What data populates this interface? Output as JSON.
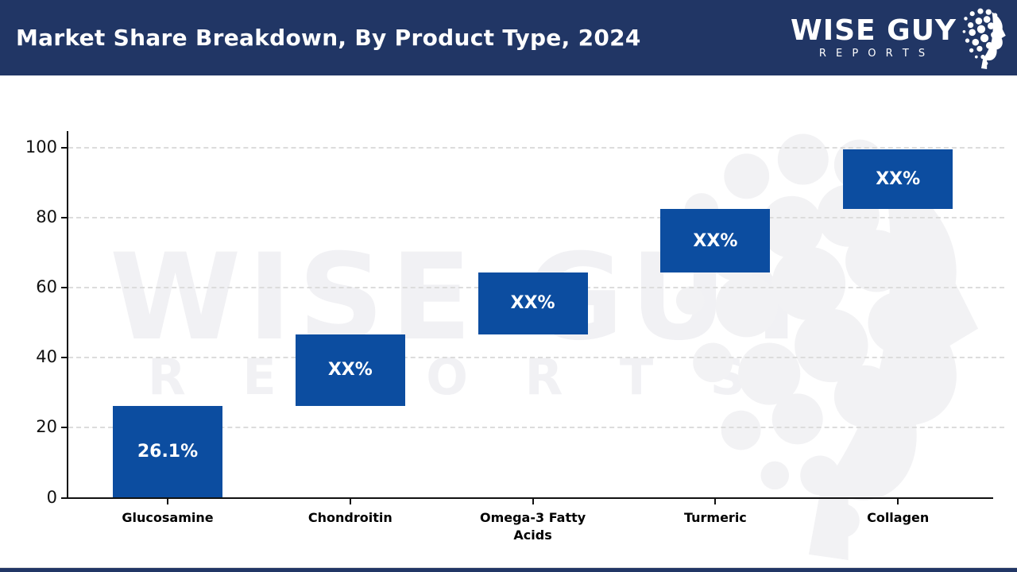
{
  "header": {
    "title": "Market Share Breakdown, By Product Type, 2024",
    "logo": {
      "line1": "WISE GUY",
      "line2": "R E P O R T S"
    }
  },
  "watermark": {
    "line1": "WISE GUY",
    "line2": "R E P O R T S"
  },
  "colors": {
    "header_bg": "#213665",
    "header_text": "#ffffff",
    "bar": "#0c4da0",
    "bar_label": "#ffffff",
    "grid": "#dcdcdc",
    "axis": "#111111",
    "watermark": "#f1f1f4",
    "footer_bar": "#213665"
  },
  "chart_data": {
    "type": "bar",
    "subtype": "waterfall-floating-bars",
    "title": "Market Share Breakdown, By Product Type, 2024",
    "categories": [
      "Glucosamine",
      "Chondroitin",
      "Omega-3 Fatty Acids",
      "Turmeric",
      "Collagen"
    ],
    "segments": [
      {
        "category": "Glucosamine",
        "start": 0,
        "end": 26.1,
        "label": "26.1%"
      },
      {
        "category": "Chondroitin",
        "start": 26.1,
        "end": 46.7,
        "label": "XX%"
      },
      {
        "category": "Omega-3 Fatty Acids",
        "start": 46.7,
        "end": 64.2,
        "label": "XX%"
      },
      {
        "category": "Turmeric",
        "start": 64.2,
        "end": 82.4,
        "label": "XX%"
      },
      {
        "category": "Collagen",
        "start": 82.4,
        "end": 99.5,
        "label": "XX%"
      }
    ],
    "xlabel": "",
    "ylabel": "",
    "ylim": [
      0,
      105
    ],
    "yticks": [
      0,
      20,
      40,
      60,
      80,
      100
    ],
    "grid": "horizontal-dashed",
    "legend": false,
    "bar_color": "#0c4da0"
  }
}
